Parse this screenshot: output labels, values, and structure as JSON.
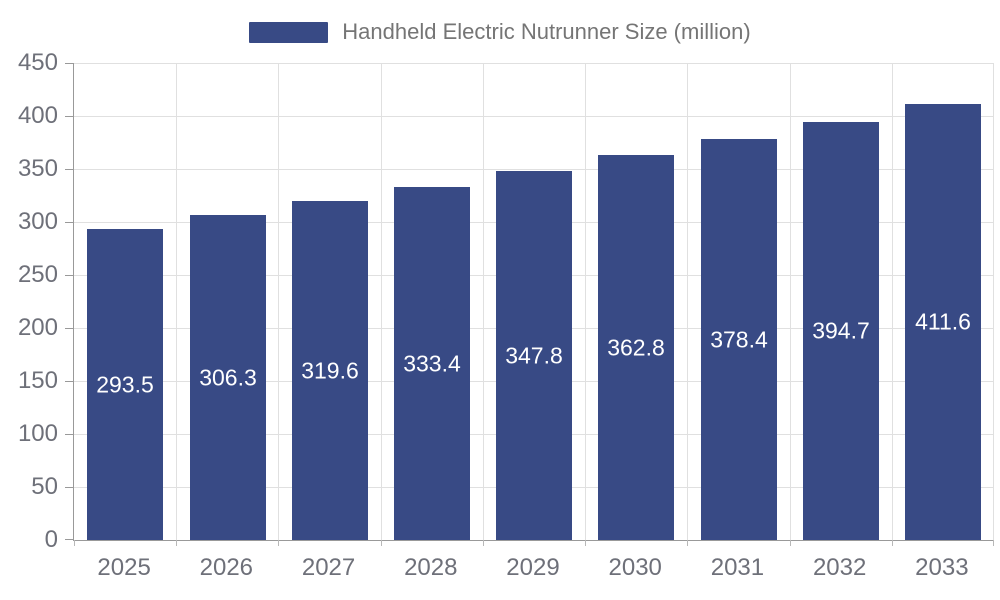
{
  "legend": {
    "label": "Handheld Electric Nutrunner Size (million)"
  },
  "chart_data": {
    "type": "bar",
    "title": "Handheld Electric Nutrunner Size (million)",
    "categories": [
      "2025",
      "2026",
      "2027",
      "2028",
      "2029",
      "2030",
      "2031",
      "2032",
      "2033"
    ],
    "values": [
      293.5,
      306.3,
      319.6,
      333.4,
      347.8,
      362.8,
      378.4,
      394.7,
      411.6
    ],
    "value_labels": [
      "293.5",
      "306.3",
      "319.6",
      "333.4",
      "347.8",
      "362.8",
      "378.4",
      "394.7",
      "411.6"
    ],
    "xlabel": "",
    "ylabel": "",
    "ylim": [
      0,
      450
    ],
    "ytick_step": 50,
    "ytick_labels": [
      "0",
      "50",
      "100",
      "150",
      "200",
      "250",
      "300",
      "350",
      "400",
      "450"
    ],
    "grid": true,
    "legend_position": "top-center",
    "colors": {
      "bar": "#384a85",
      "bar_value_text": "#ffffff",
      "axis_text": "#6e7079",
      "legend_text": "#757575",
      "gridline": "#e0e0e0",
      "axis_line": "#999999"
    }
  }
}
